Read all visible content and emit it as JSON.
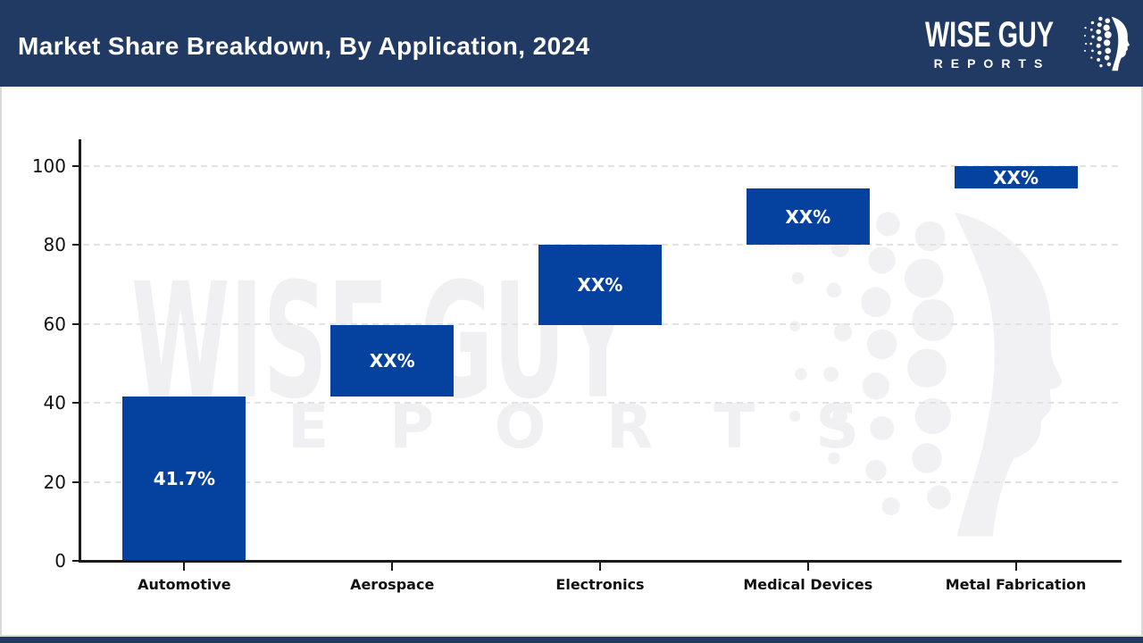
{
  "header": {
    "title": "Market Share Breakdown, By Application, 2024",
    "logo": {
      "line1": "WISE GUY",
      "line2": "REPORTS"
    }
  },
  "watermark": {
    "line1": "WISE GUY",
    "line2": "R E P O R T S"
  },
  "colors": {
    "header_bg": "#213A64",
    "footer_bg": "#213A64",
    "bar": "#05419E",
    "bar_label": "#ffffff",
    "grid": "#e2e2e2",
    "axis": "#1a1a1a",
    "watermark": "#f0f0f2"
  },
  "chart_data": {
    "type": "bar",
    "subtype": "waterfall",
    "title": "Market Share Breakdown, By Application, 2024",
    "categories": [
      "Automotive",
      "Aerospace",
      "Electronics",
      "Medical Devices",
      "Metal Fabrication"
    ],
    "segments": [
      {
        "category": "Automotive",
        "start": 0,
        "end": 41.7,
        "label": "41.7%"
      },
      {
        "category": "Aerospace",
        "start": 41.7,
        "end": 59.7,
        "label": "XX%"
      },
      {
        "category": "Electronics",
        "start": 59.7,
        "end": 80,
        "label": "XX%"
      },
      {
        "category": "Medical Devices",
        "start": 80,
        "end": 94.3,
        "label": "XX%"
      },
      {
        "category": "Metal Fabrication",
        "start": 94.3,
        "end": 100,
        "label": "XX%"
      }
    ],
    "xlabel": "",
    "ylabel": "",
    "ylim": [
      0,
      100
    ],
    "yticks": [
      0,
      20,
      40,
      60,
      80,
      100
    ],
    "grid": "horizontal-dashed",
    "legend": "none"
  }
}
